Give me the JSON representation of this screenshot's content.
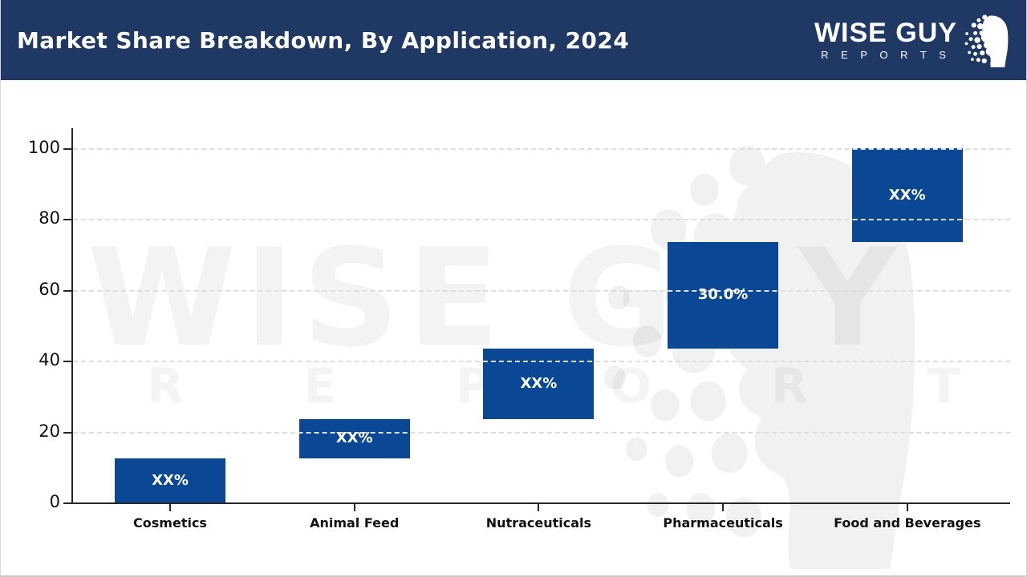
{
  "header": {
    "title": "Market Share Breakdown, By Application, 2024",
    "logo": {
      "wordmark": "WISE GUY",
      "subtitle": "R E P O R T S"
    }
  },
  "chart_data": {
    "type": "bar",
    "variant": "waterfall",
    "title": "Market Share Breakdown, By Application, 2024",
    "categories": [
      "Cosmetics",
      "Animal Feed",
      "Nutraceuticals",
      "Pharmaceuticals",
      "Food and Beverages"
    ],
    "segments": [
      {
        "category": "Cosmetics",
        "start": 0,
        "end": 12.5,
        "label": "XX%"
      },
      {
        "category": "Animal Feed",
        "start": 12.5,
        "end": 23.5,
        "label": "XX%"
      },
      {
        "category": "Nutraceuticals",
        "start": 23.5,
        "end": 43.5,
        "label": "XX%"
      },
      {
        "category": "Pharmaceuticals",
        "start": 43.5,
        "end": 73.5,
        "label": "30.0%"
      },
      {
        "category": "Food and Beverages",
        "start": 73.5,
        "end": 100,
        "label": "XX%"
      }
    ],
    "y_ticks": [
      0,
      20,
      40,
      60,
      80,
      100
    ],
    "ylim": [
      0,
      105
    ],
    "xlabel": "",
    "ylabel": "",
    "legend": "none",
    "grid": "horizontal-dashed-drawn-above-bars",
    "colors": {
      "bar": "#0a4795",
      "bar_label": "#ffffff",
      "grid": "#dedede",
      "axis": "#262626",
      "header_bg": "#1f3864",
      "tick_label": "#111111"
    },
    "watermark": {
      "wordmark": "WISE GUY",
      "subtitle": "R E P O R T S"
    }
  }
}
